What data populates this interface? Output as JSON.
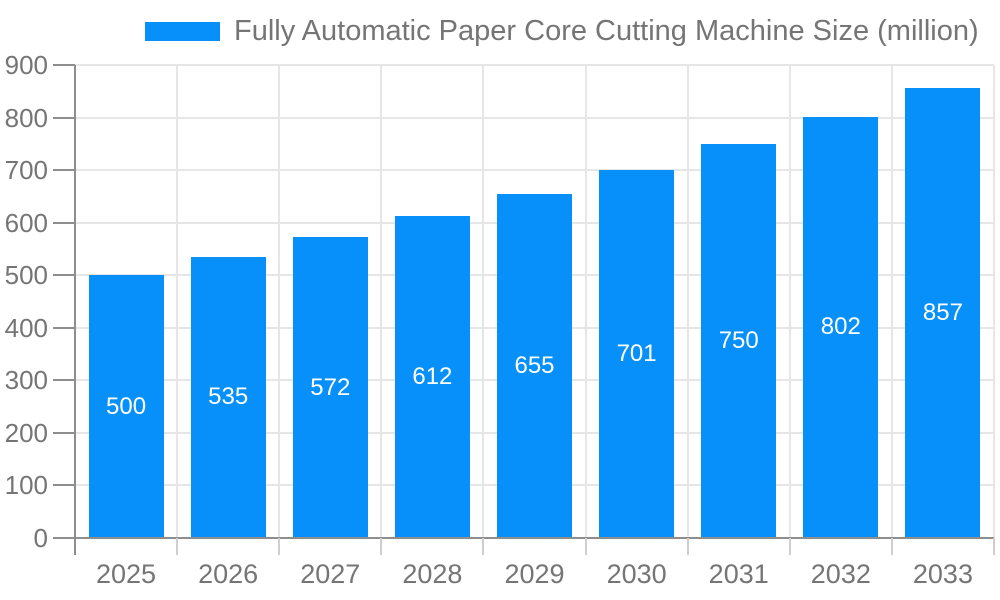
{
  "chart_data": {
    "type": "bar",
    "title": "Fully Automatic Paper Core Cutting Machine Size (million)",
    "legend": {
      "label": "Fully Automatic Paper Core Cutting Machine Size (million)",
      "position": "top"
    },
    "categories": [
      "2025",
      "2026",
      "2027",
      "2028",
      "2029",
      "2030",
      "2031",
      "2032",
      "2033"
    ],
    "values": [
      500,
      535,
      572,
      612,
      655,
      701,
      750,
      802,
      857
    ],
    "xlabel": "",
    "ylabel": "",
    "ylim": [
      0,
      900
    ],
    "ytick_step": 100,
    "yticks": [
      0,
      100,
      200,
      300,
      400,
      500,
      600,
      700,
      800,
      900
    ],
    "grid": true,
    "colors": {
      "bar": "#0890fa",
      "bar_label_text": "#ffffff",
      "axis_text": "#757575",
      "legend_text": "#757575",
      "gridline": "#e6e6e6",
      "axis_line": "#8e8e8e",
      "minor_tick": "#cfcfcf",
      "background": "#ffffff"
    }
  }
}
